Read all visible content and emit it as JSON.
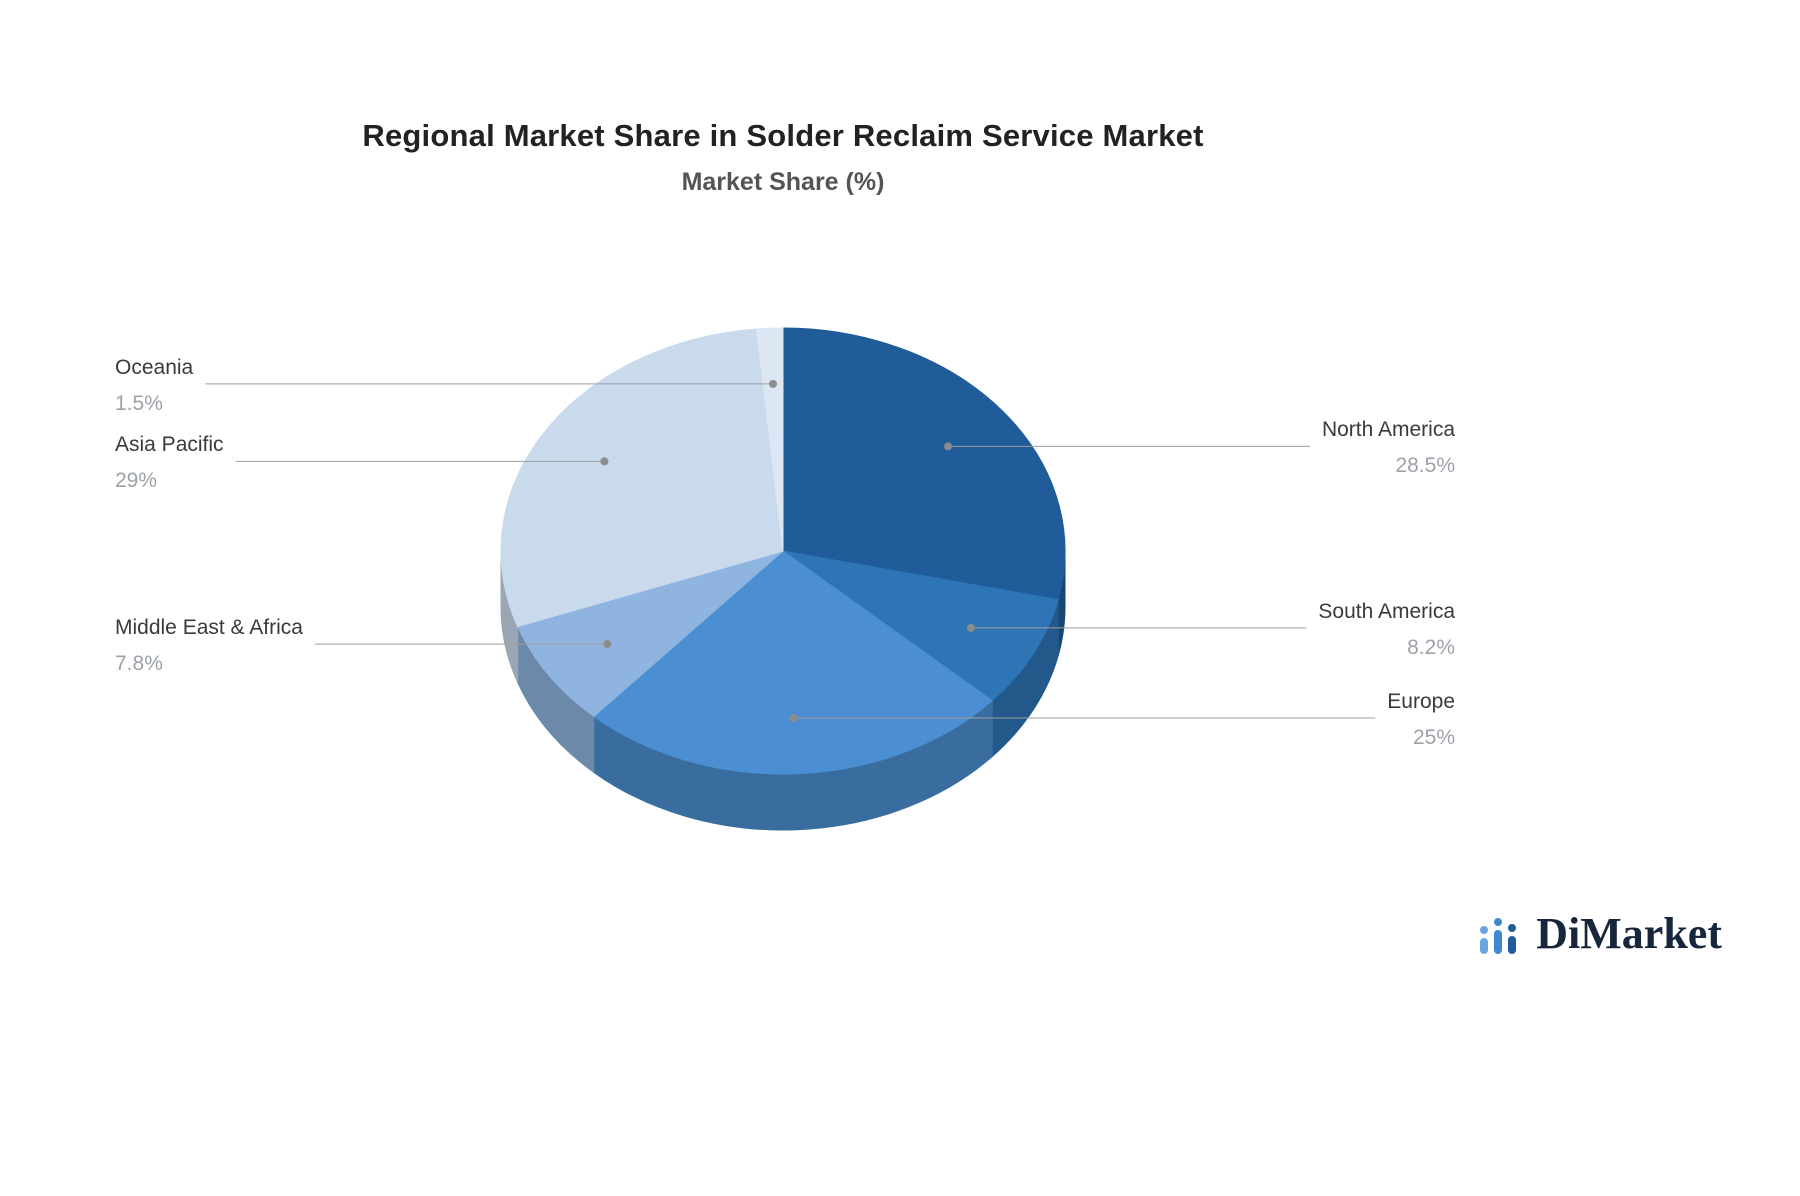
{
  "chart_data": {
    "type": "pie",
    "title": "Regional Market Share in Solder Reclaim Service Market",
    "subtitle": "Market Share (%)",
    "unit": "%",
    "legend_position": "none",
    "labels_layout": "callout-lines",
    "style": "3d-pie",
    "slices": [
      {
        "label": "North America",
        "value": 28.5,
        "display": "28.5%",
        "color": "#1f5c99",
        "label_side": "right"
      },
      {
        "label": "South America",
        "value": 8.2,
        "display": "8.2%",
        "color": "#2e75b6",
        "label_side": "right"
      },
      {
        "label": "Europe",
        "value": 25,
        "display": "25%",
        "color": "#4b8fd2",
        "label_side": "right"
      },
      {
        "label": "Middle East & Africa",
        "value": 7.8,
        "display": "7.8%",
        "color": "#8fb4e0",
        "label_side": "left"
      },
      {
        "label": "Asia Pacific",
        "value": 29,
        "display": "29%",
        "color": "#c9daed",
        "label_side": "left"
      },
      {
        "label": "Oceania",
        "value": 1.5,
        "display": "1.5%",
        "color": "#dde7f4",
        "label_side": "left"
      }
    ]
  },
  "brand": {
    "name": "DiMarket",
    "text_color": "#17263c",
    "icon_color": "#3f87cf"
  }
}
